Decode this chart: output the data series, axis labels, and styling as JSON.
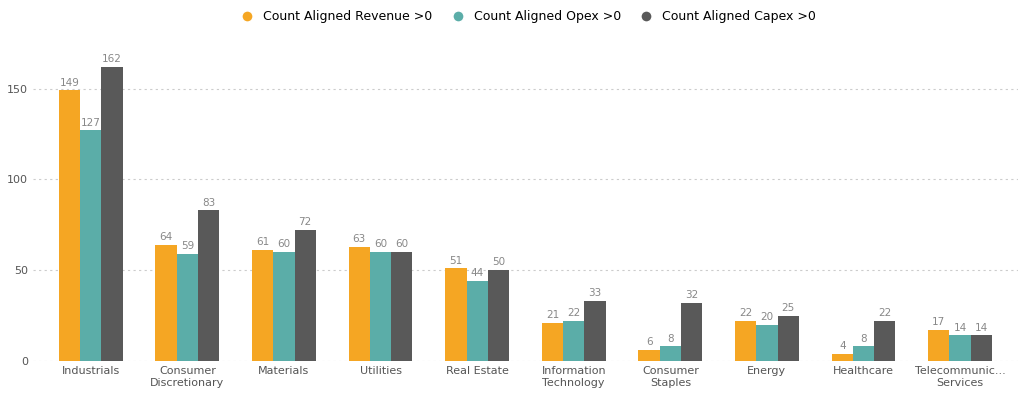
{
  "categories": [
    "Industrials",
    "Consumer\nDiscretionary",
    "Materials",
    "Utilities",
    "Real Estate",
    "Information\nTechnology",
    "Consumer\nStaples",
    "Energy",
    "Healthcare",
    "Telecommunic...\nServices"
  ],
  "revenue": [
    149,
    64,
    61,
    63,
    51,
    21,
    6,
    22,
    4,
    17
  ],
  "opex": [
    127,
    59,
    60,
    60,
    44,
    22,
    8,
    20,
    8,
    14
  ],
  "capex": [
    162,
    83,
    72,
    60,
    50,
    33,
    32,
    25,
    22,
    14
  ],
  "color_revenue": "#F5A623",
  "color_opex": "#5BADA8",
  "color_capex": "#595959",
  "legend_labels": [
    "Count Aligned Revenue >0",
    "Count Aligned Opex >0",
    "Count Aligned Capex >0"
  ],
  "ylim": [
    0,
    175
  ],
  "yticks": [
    0,
    50,
    100,
    150
  ],
  "bar_width": 0.22,
  "label_fontsize": 7.5,
  "tick_fontsize": 8.0,
  "legend_fontsize": 9,
  "bg_color": "#FFFFFF",
  "grid_color": "#CCCCCC",
  "value_label_color": "#888888"
}
